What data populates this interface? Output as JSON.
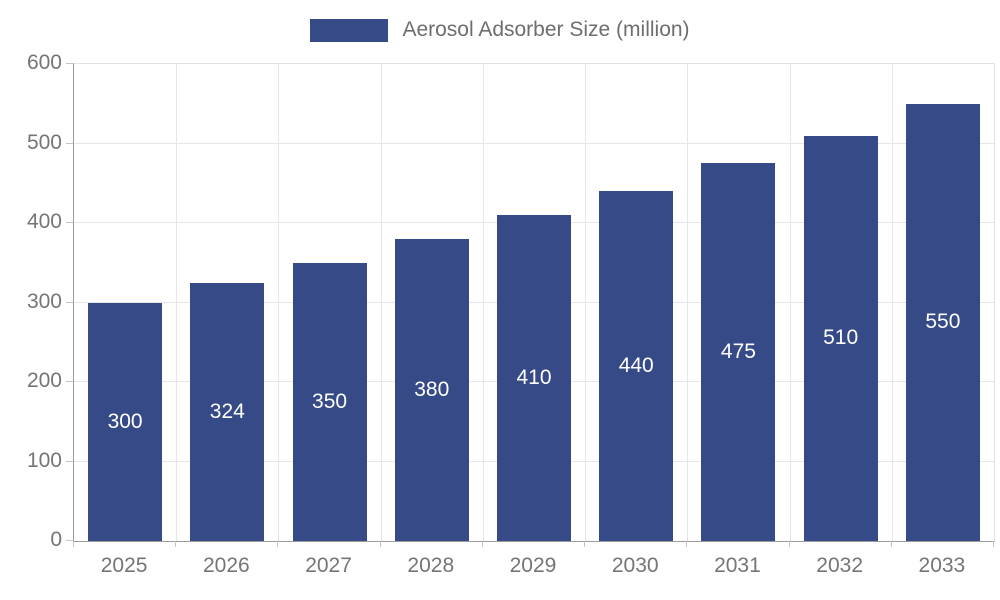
{
  "chart_data": {
    "type": "bar",
    "title": "",
    "categories": [
      "2025",
      "2026",
      "2027",
      "2028",
      "2029",
      "2030",
      "2031",
      "2032",
      "2033"
    ],
    "series": [
      {
        "name": "Aerosol Adsorber Size (million)",
        "values": [
          300,
          324,
          350,
          380,
          410,
          440,
          475,
          510,
          550
        ]
      }
    ],
    "xlabel": "",
    "ylabel": "",
    "ylim": [
      0,
      600
    ],
    "yticks": [
      0,
      100,
      200,
      300,
      400,
      500,
      600
    ],
    "grid": true,
    "legend_position": "top",
    "colors": {
      "bar": "#364A88",
      "bar_value_label": "#ffffff",
      "gridline": "#e6e6e6",
      "axis_line": "#9a9a9a",
      "tick_mark": "#c4c4c4",
      "tick_label": "#757575",
      "legend_text": "#6e6e6e"
    }
  }
}
